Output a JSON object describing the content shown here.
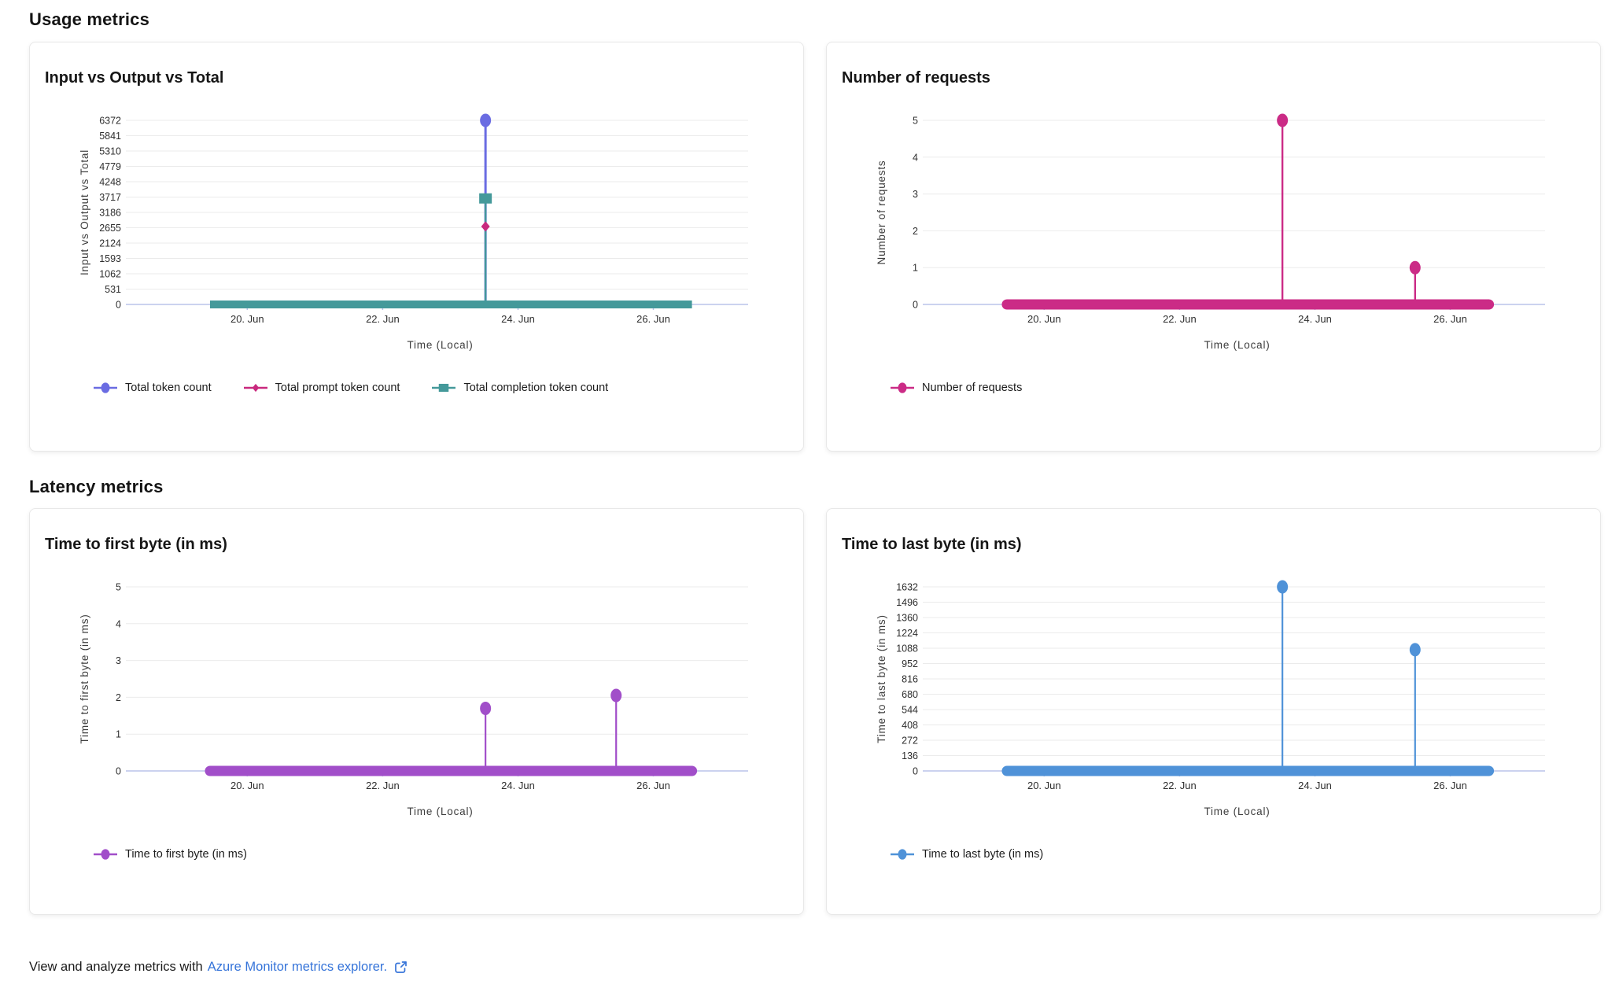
{
  "sections": [
    {
      "heading": "Usage metrics"
    },
    {
      "heading": "Latency metrics"
    }
  ],
  "footer": {
    "text": "View and analyze metrics with",
    "link_label": "Azure Monitor metrics explorer.",
    "icon_name": "external-link-icon",
    "link_color": "#3674d9"
  },
  "chart_data": [
    {
      "id": "input-vs-output-vs-total",
      "type": "line",
      "title": "Input vs Output vs Total",
      "xlabel": "Time (Local)",
      "ylabel": "Input vs Output vs Total",
      "x_tick_labels": [
        "20. Jun",
        "22. Jun",
        "24. Jun",
        "26. Jun"
      ],
      "x_tick_days": [
        20,
        22,
        24,
        26
      ],
      "x_domain_days": [
        18.3,
        27.4
      ],
      "ylim": [
        0,
        6372
      ],
      "y_ticks": [
        0,
        531,
        1062,
        1593,
        2124,
        2655,
        3186,
        3717,
        4248,
        4779,
        5310,
        5841,
        6372
      ],
      "grid": true,
      "legend_position": "bottom-left",
      "baseline": {
        "from_day": 19.45,
        "to_day": 26.57,
        "value": 0,
        "color": "#44999a",
        "thickness": 10,
        "cap": "butt"
      },
      "series": [
        {
          "name": "Total token count",
          "color": "#6a6ce2",
          "marker": "circle",
          "line_width": 3,
          "points": [
            {
              "day": 23.52,
              "value": 6372
            }
          ]
        },
        {
          "name": "Total prompt token count",
          "color": "#c9297e",
          "marker": "diamond",
          "line_width": 1.6,
          "points": [
            {
              "day": 23.52,
              "value": 2700
            }
          ]
        },
        {
          "name": "Total completion token count",
          "color": "#44999a",
          "marker": "square",
          "line_width": 2.4,
          "points": [
            {
              "day": 23.52,
              "value": 3670
            }
          ]
        }
      ]
    },
    {
      "id": "number-of-requests",
      "type": "line",
      "title": "Number of requests",
      "xlabel": "Time (Local)",
      "ylabel": "Number of requests",
      "x_tick_labels": [
        "20. Jun",
        "22. Jun",
        "24. Jun",
        "26. Jun"
      ],
      "x_tick_days": [
        20,
        22,
        24,
        26
      ],
      "x_domain_days": [
        18.3,
        27.4
      ],
      "ylim": [
        0,
        5
      ],
      "y_ticks": [
        0,
        1,
        2,
        3,
        4,
        5
      ],
      "grid": true,
      "legend_position": "bottom-left",
      "baseline": {
        "from_day": 19.45,
        "to_day": 26.57,
        "value": 0,
        "color": "#cb2b86",
        "thickness": 13,
        "cap": "round"
      },
      "series": [
        {
          "name": "Number of requests",
          "color": "#cb2b86",
          "marker": "circle",
          "line_width": 2.4,
          "points": [
            {
              "day": 23.52,
              "value": 5
            },
            {
              "day": 25.48,
              "value": 1
            }
          ]
        }
      ]
    },
    {
      "id": "time-to-first-byte",
      "type": "line",
      "title": "Time to first byte (in ms)",
      "xlabel": "Time (Local)",
      "ylabel": "Time to first byte (in ms)",
      "x_tick_labels": [
        "20. Jun",
        "22. Jun",
        "24. Jun",
        "26. Jun"
      ],
      "x_tick_days": [
        20,
        22,
        24,
        26
      ],
      "x_domain_days": [
        18.3,
        27.4
      ],
      "ylim": [
        0,
        5
      ],
      "y_ticks": [
        0,
        1,
        2,
        3,
        4,
        5
      ],
      "grid": true,
      "legend_position": "bottom-left",
      "baseline": {
        "from_day": 19.45,
        "to_day": 26.57,
        "value": 0,
        "color": "#a14ec9",
        "thickness": 13,
        "cap": "round"
      },
      "series": [
        {
          "name": "Time to first byte (in ms)",
          "color": "#a14ec9",
          "marker": "circle",
          "line_width": 2.2,
          "points": [
            {
              "day": 23.52,
              "value": 1.7
            },
            {
              "day": 25.45,
              "value": 2.05
            }
          ]
        }
      ]
    },
    {
      "id": "time-to-last-byte",
      "type": "line",
      "title": "Time to last byte (in ms)",
      "xlabel": "Time (Local)",
      "ylabel": "Time to last byte (in ms)",
      "x_tick_labels": [
        "20. Jun",
        "22. Jun",
        "24. Jun",
        "26. Jun"
      ],
      "x_tick_days": [
        20,
        22,
        24,
        26
      ],
      "x_domain_days": [
        18.3,
        27.4
      ],
      "ylim": [
        0,
        1632
      ],
      "y_ticks": [
        0,
        136,
        272,
        408,
        544,
        680,
        816,
        952,
        1088,
        1224,
        1360,
        1496,
        1632
      ],
      "grid": true,
      "legend_position": "bottom-left",
      "baseline": {
        "from_day": 19.45,
        "to_day": 26.57,
        "value": 0,
        "color": "#4f92d8",
        "thickness": 13,
        "cap": "round"
      },
      "series": [
        {
          "name": "Time to last byte (in ms)",
          "color": "#4f92d8",
          "marker": "circle",
          "line_width": 2.2,
          "points": [
            {
              "day": 23.52,
              "value": 1632
            },
            {
              "day": 25.48,
              "value": 1075
            }
          ]
        }
      ]
    }
  ]
}
